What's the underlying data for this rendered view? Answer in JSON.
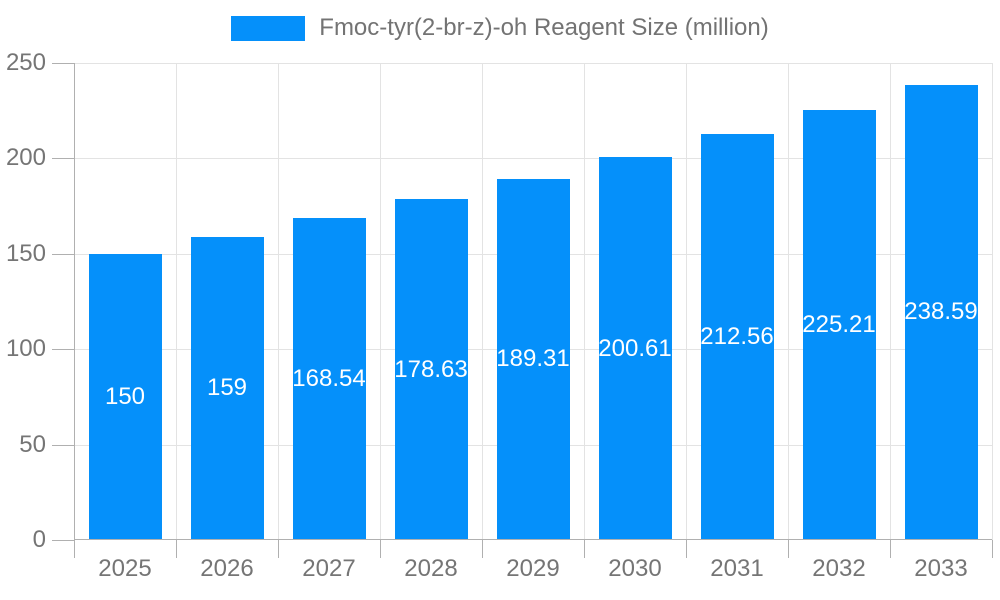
{
  "legend": {
    "label": "Fmoc-tyr(2-br-z)-oh Reagent Size (million)"
  },
  "chart_data": {
    "type": "bar",
    "title": "Fmoc-tyr(2-br-z)-oh Reagent Size (million)",
    "categories": [
      "2025",
      "2026",
      "2027",
      "2028",
      "2029",
      "2030",
      "2031",
      "2032",
      "2033"
    ],
    "values": [
      150,
      159,
      168.54,
      178.63,
      189.31,
      200.61,
      212.56,
      225.21,
      238.59
    ],
    "value_labels": [
      "150",
      "159",
      "168.54",
      "178.63",
      "189.31",
      "200.61",
      "212.56",
      "225.21",
      "238.59"
    ],
    "xlabel": "",
    "ylabel": "",
    "ylim": [
      0,
      250
    ],
    "yticks": [
      0,
      50,
      100,
      150,
      200,
      250
    ],
    "grid": true,
    "legend_position": "top-center",
    "colors": {
      "bar": "#0590fa",
      "value_label": "#ffffff",
      "axis_text": "#757575",
      "legend_text": "#737373",
      "grid_line": "#e3e3e3",
      "axis_line": "#b0b0b0",
      "background": "#ffffff"
    }
  }
}
